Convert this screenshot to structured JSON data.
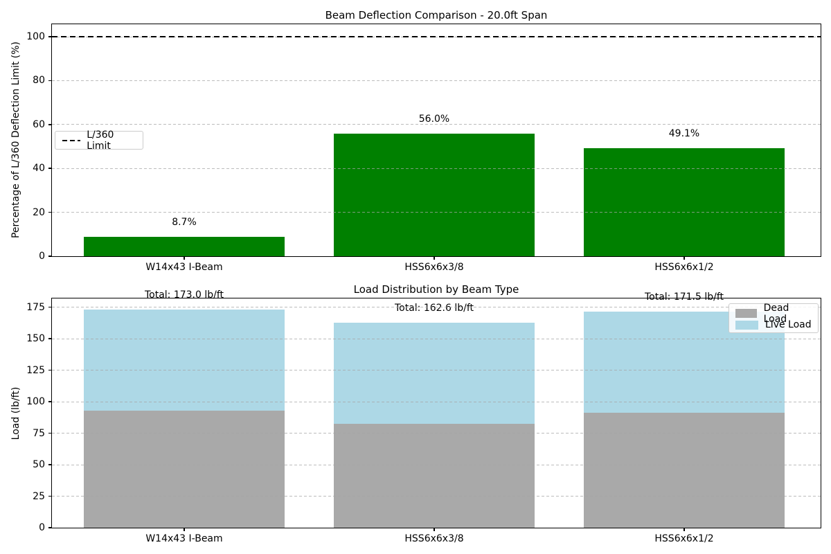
{
  "figure": {
    "background": "#ffffff"
  },
  "chart_data": [
    {
      "type": "bar",
      "title": "Beam Deflection Comparison - 20.0ft Span",
      "ylabel": "Percentage of L/360 Deflection Limit (%)",
      "xlabel": "",
      "categories": [
        "W14x43 I-Beam",
        "HSS6x6x3/8",
        "HSS6x6x1/2"
      ],
      "values": [
        8.7,
        56.0,
        49.1
      ],
      "bar_labels": [
        "8.7%",
        "56.0%",
        "49.1%"
      ],
      "bar_color": "#008000",
      "yticks": [
        0,
        20,
        40,
        60,
        80,
        100
      ],
      "ylim": [
        0,
        105.7
      ],
      "grid": "horizontal dashed",
      "reference_line": {
        "value": 100,
        "style": "dashed",
        "color": "#000000",
        "label": "L/360 Limit"
      },
      "legend": {
        "position": "center-left",
        "label": "L/360 Limit"
      }
    },
    {
      "type": "stacked-bar",
      "title": "Load Distribution by Beam Type",
      "ylabel": "Load (lb/ft)",
      "xlabel": "",
      "categories": [
        "W14x43 I-Beam",
        "HSS6x6x3/8",
        "HSS6x6x1/2"
      ],
      "series": [
        {
          "name": "Dead Load",
          "color": "#a9a9a9",
          "values": [
            93.0,
            82.6,
            91.5
          ]
        },
        {
          "name": "Live Load",
          "color": "#add8e6",
          "values": [
            80.0,
            80.0,
            80.0
          ]
        }
      ],
      "totals": [
        173.0,
        162.6,
        171.5
      ],
      "total_labels": [
        "Total: 173.0 lb/ft",
        "Total: 162.6 lb/ft",
        "Total: 171.5 lb/ft"
      ],
      "yticks": [
        0,
        25,
        50,
        75,
        100,
        125,
        150,
        175
      ],
      "ylim": [
        0,
        182
      ],
      "grid": "horizontal dashed",
      "legend": {
        "position": "upper-right",
        "entries": [
          "Dead Load",
          "Live Load"
        ]
      }
    }
  ]
}
